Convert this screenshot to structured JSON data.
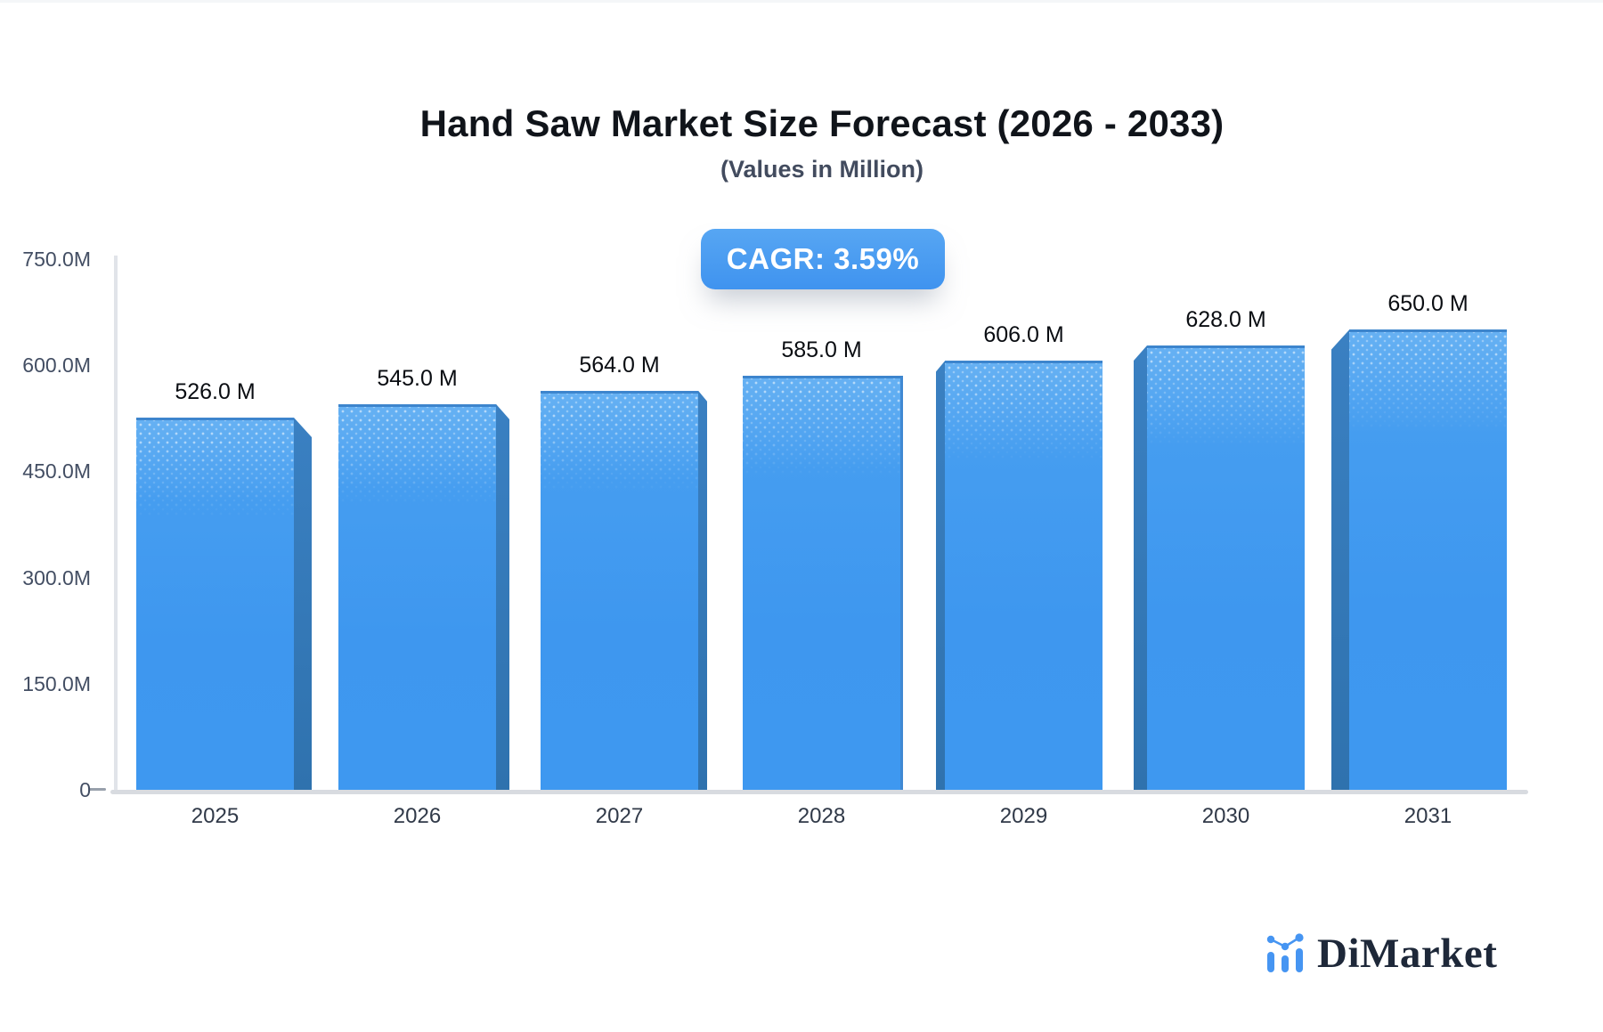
{
  "header": {
    "title": "Hand Saw Market Size Forecast (2026 - 2033)",
    "subtitle": "(Values in Million)",
    "cagr_label": "CAGR: 3.59%"
  },
  "chart_data": {
    "type": "bar",
    "title": "Hand Saw Market Size Forecast (2026 - 2033)",
    "subtitle": "(Values in Million)",
    "cagr_percent": 3.59,
    "categories": [
      "2025",
      "2026",
      "2027",
      "2028",
      "2029",
      "2030",
      "2031"
    ],
    "values": [
      526,
      545,
      564,
      585,
      606,
      628,
      650
    ],
    "value_labels": [
      "526.0 M",
      "545.0 M",
      "564.0 M",
      "585.0 M",
      "606.0 M",
      "628.0 M",
      "650.0 M"
    ],
    "unit": "Million",
    "ylim": [
      0,
      750
    ],
    "yticks": [
      0,
      150,
      300,
      450,
      600,
      750
    ],
    "ytick_labels": [
      "0",
      "150.0M",
      "300.0M",
      "450.0M",
      "600.0M",
      "750.0M"
    ],
    "grid": false,
    "legend": false,
    "bar_style": "3d-perspective"
  },
  "branding": {
    "logo_text": "DiMarket",
    "logo_icon": "bar-line-chart-icon"
  },
  "colors": {
    "bar_face": "#3e97ef",
    "bar_face_light": "#66b1f3",
    "bar_side": "#2f72ae",
    "bar_top_edge": "#3d85cd",
    "badge_bg": "#459af0",
    "badge_text": "#ffffff",
    "axis_line": "#e1e4e9",
    "baseline": "#d8dbe0",
    "ytick_text": "#434e63",
    "xtick_text": "#303948",
    "value_text": "#0a0d12",
    "title_text": "#10141a",
    "subtitle_text": "#424b5e",
    "logo_blue": "#4695f2",
    "logo_navy": "#1e2839"
  }
}
